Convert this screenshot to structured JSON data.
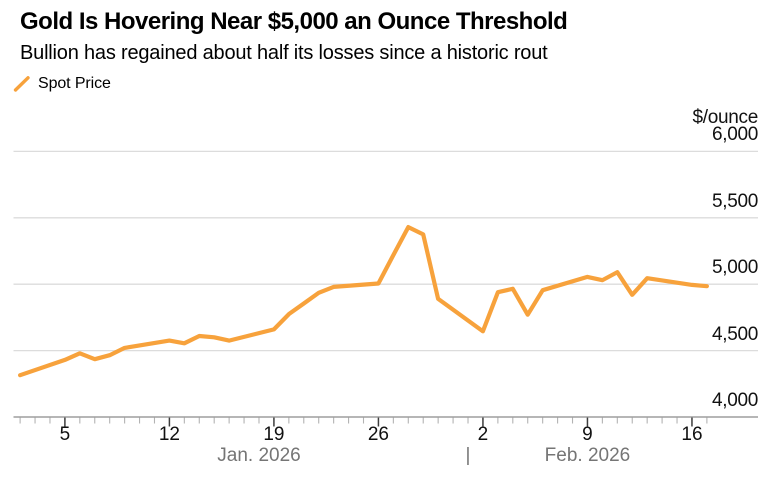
{
  "chart_data": {
    "type": "line",
    "title": "Gold Is Hovering Near $5,000 an Ounce Threshold",
    "subtitle": "Bullion has regained about half its losses since a historic rout",
    "unit_label": "$/ounce",
    "accent_color": "#F7A23C",
    "grid": true,
    "legend": {
      "position": "top-left",
      "entries": [
        {
          "label": "Spot Price",
          "marker": "orange-slash"
        }
      ]
    },
    "ylim": [
      4000,
      6000
    ],
    "yticks": [
      {
        "value": 6000,
        "label": "6,000"
      },
      {
        "value": 5500,
        "label": "5,500"
      },
      {
        "value": 5000,
        "label": "5,000"
      },
      {
        "value": 4500,
        "label": "4,500"
      },
      {
        "value": 4000,
        "label": "4,000"
      }
    ],
    "x_range": [
      "2026-01-02",
      "2026-02-17"
    ],
    "xticks_major": [
      {
        "date": "2026-01-05",
        "label": "5"
      },
      {
        "date": "2026-01-12",
        "label": "12"
      },
      {
        "date": "2026-01-19",
        "label": "19"
      },
      {
        "date": "2026-01-26",
        "label": "26"
      },
      {
        "date": "2026-02-02",
        "label": "2"
      },
      {
        "date": "2026-02-09",
        "label": "9"
      },
      {
        "date": "2026-02-16",
        "label": "16"
      }
    ],
    "month_labels": [
      {
        "label": "Jan. 2026",
        "anchor_date": "2026-01-18"
      },
      {
        "label": "Feb. 2026",
        "anchor_date": "2026-02-09"
      }
    ],
    "month_divider": {
      "glyph": "|",
      "anchor_date": "2026-02-01"
    },
    "series": [
      {
        "name": "Spot Price",
        "color": "#F7A23C",
        "points": [
          [
            "2026-01-02",
            4315
          ],
          [
            "2026-01-05",
            4430
          ],
          [
            "2026-01-06",
            4480
          ],
          [
            "2026-01-07",
            4435
          ],
          [
            "2026-01-08",
            4465
          ],
          [
            "2026-01-09",
            4520
          ],
          [
            "2026-01-12",
            4575
          ],
          [
            "2026-01-13",
            4555
          ],
          [
            "2026-01-14",
            4610
          ],
          [
            "2026-01-15",
            4600
          ],
          [
            "2026-01-16",
            4575
          ],
          [
            "2026-01-19",
            4660
          ],
          [
            "2026-01-20",
            4775
          ],
          [
            "2026-01-21",
            4855
          ],
          [
            "2026-01-22",
            4935
          ],
          [
            "2026-01-23",
            4980
          ],
          [
            "2026-01-26",
            5005
          ],
          [
            "2026-01-27",
            5220
          ],
          [
            "2026-01-28",
            5430
          ],
          [
            "2026-01-29",
            5375
          ],
          [
            "2026-01-30",
            4890
          ],
          [
            "2026-02-02",
            4645
          ],
          [
            "2026-02-03",
            4940
          ],
          [
            "2026-02-04",
            4965
          ],
          [
            "2026-02-05",
            4770
          ],
          [
            "2026-02-06",
            4955
          ],
          [
            "2026-02-09",
            5055
          ],
          [
            "2026-02-10",
            5030
          ],
          [
            "2026-02-11",
            5090
          ],
          [
            "2026-02-12",
            4920
          ],
          [
            "2026-02-13",
            5045
          ],
          [
            "2026-02-16",
            4995
          ],
          [
            "2026-02-17",
            4985
          ]
        ]
      }
    ]
  }
}
